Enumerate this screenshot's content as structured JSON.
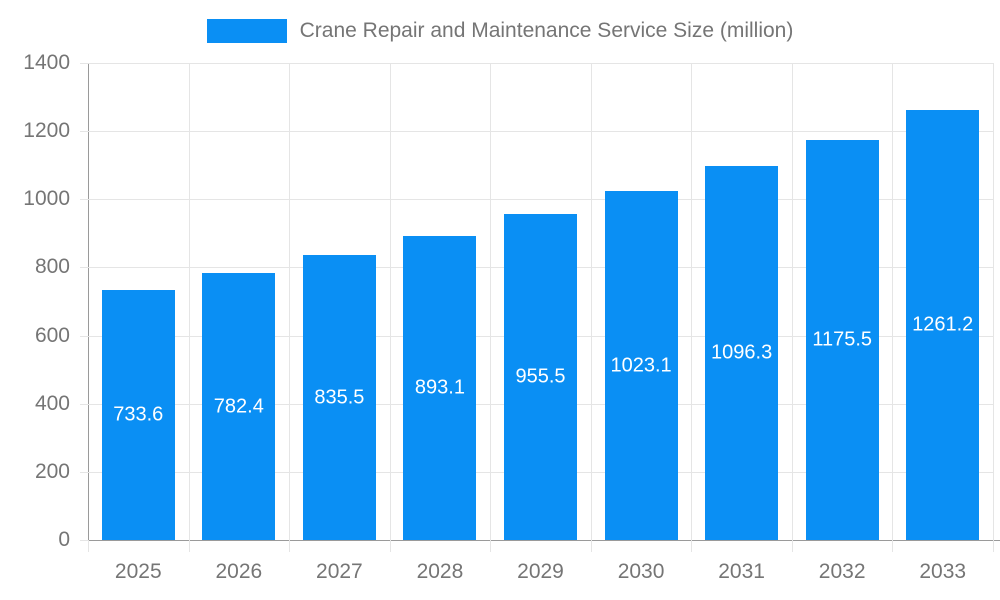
{
  "chart_data": {
    "type": "bar",
    "title": "Crane Repair and Maintenance Service Size (million)",
    "legend": {
      "position": "top",
      "label": "Crane Repair and Maintenance Service Size (million)"
    },
    "categories": [
      "2025",
      "2026",
      "2027",
      "2028",
      "2029",
      "2030",
      "2031",
      "2032",
      "2033"
    ],
    "values": [
      733.6,
      782.4,
      835.5,
      893.1,
      955.5,
      1023.1,
      1096.3,
      1175.5,
      1261.2
    ],
    "value_labels": [
      "733.6",
      "782.4",
      "835.5",
      "893.1",
      "955.5",
      "1023.1",
      "1096.3",
      "1175.5",
      "1261.2"
    ],
    "xlabel": "",
    "ylabel": "",
    "ylim": [
      0,
      1400
    ],
    "yticks": [
      0,
      200,
      400,
      600,
      800,
      1000,
      1200,
      1400
    ],
    "grid": "horizontal and vertical boundary gridlines on",
    "colors": {
      "bar": "#0a8ff4",
      "value_label": "#ffffff",
      "tick_text": "#757575",
      "gridline": "#e5e5e5",
      "axis": "#9a9a9a",
      "background": "#ffffff"
    }
  }
}
